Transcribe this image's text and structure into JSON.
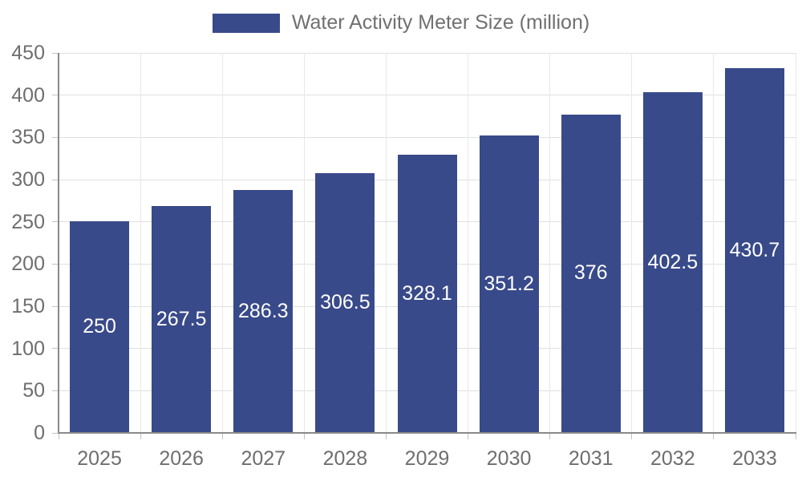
{
  "chart_data": {
    "type": "bar",
    "title": "Water Activity Meter Size (million)",
    "categories": [
      "2025",
      "2026",
      "2027",
      "2028",
      "2029",
      "2030",
      "2031",
      "2032",
      "2033"
    ],
    "values": [
      250,
      267.5,
      286.3,
      306.5,
      328.1,
      351.2,
      376,
      402.5,
      430.7
    ],
    "value_labels": [
      "250",
      "267.5",
      "286.3",
      "306.5",
      "328.1",
      "351.2",
      "376",
      "402.5",
      "430.7"
    ],
    "xlabel": "",
    "ylabel": "",
    "ylim": [
      0,
      450
    ],
    "yticks": [
      0,
      50,
      100,
      150,
      200,
      250,
      300,
      350,
      400,
      450
    ],
    "grid": true,
    "legend_position": "top",
    "legend_entries": [
      "Water Activity Meter Size (million)"
    ],
    "colors": {
      "bar": "#394A8A",
      "bar_value_text": "#FFFFFF",
      "legend_text": "#707070",
      "axis_text": "#6E6E6E",
      "axis_line": "#8A8A8A",
      "gridline_h": "#E0E0E0",
      "gridline_v": "#E8E8E8",
      "tick": "#C2C2C8",
      "background": "#FFFFFF"
    }
  }
}
